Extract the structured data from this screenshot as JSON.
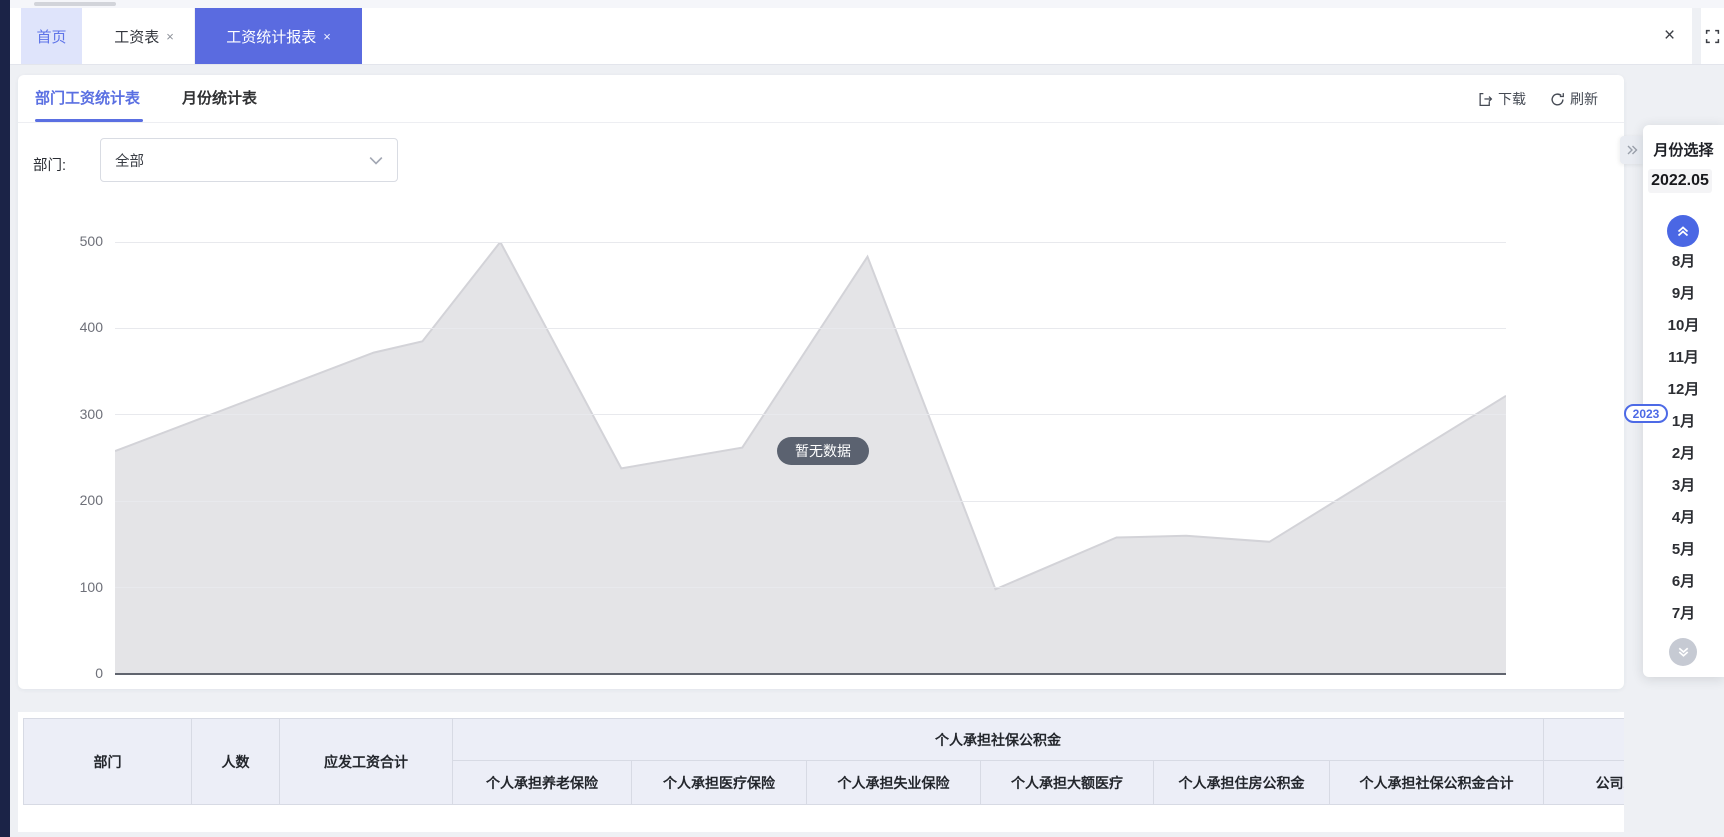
{
  "top_tabs": {
    "home": "首页",
    "payroll": "工资表",
    "report": "工资统计报表",
    "close_glyph": "×"
  },
  "window_controls": {
    "close_glyph": "×"
  },
  "view_tabs": {
    "department": "部门工资统计表",
    "month": "月份统计表"
  },
  "toolbar": {
    "download": "下载",
    "refresh": "刷新"
  },
  "filter": {
    "label": "部门:",
    "value": "全部"
  },
  "chart_data": {
    "type": "area",
    "title": "",
    "xlabel": "",
    "ylabel": "",
    "ylim": [
      0,
      500
    ],
    "yticks": [
      0,
      100,
      200,
      300,
      400,
      500
    ],
    "x_tick_labels_visible": false,
    "grid": true,
    "legend": "none",
    "no_data_label": "暂无数据",
    "series": [
      {
        "name": "gray-placeholder-area",
        "point_format": "[x_fraction_of_plot_width, y_value]",
        "points": [
          [
            0,
            258
          ],
          [
            0.186,
            372
          ],
          [
            0.221,
            385
          ],
          [
            0.277,
            500
          ],
          [
            0.364,
            238
          ],
          [
            0.451,
            262
          ],
          [
            0.541,
            483
          ],
          [
            0.633,
            98
          ],
          [
            0.72,
            158
          ],
          [
            0.77,
            160
          ],
          [
            0.83,
            153
          ],
          [
            1,
            322
          ]
        ]
      }
    ],
    "area_fill": "#e4e4e7",
    "area_stroke": "#d3d3d8"
  },
  "month_panel": {
    "title": "月份选择",
    "selected": "2022.05",
    "year_badge": "2023",
    "months": [
      "8月",
      "9月",
      "10月",
      "11月",
      "12月",
      "1月",
      "2月",
      "3月",
      "4月",
      "5月",
      "6月",
      "7月"
    ]
  },
  "table": {
    "columns_simple": [
      "部门",
      "人数",
      "应发工资合计"
    ],
    "group_personal": {
      "label": "个人承担社保公积金",
      "children": [
        "个人承担养老保险",
        "个人承担医疗保险",
        "个人承担失业保险",
        "个人承担大额医疗",
        "个人承担住房公积金",
        "个人承担社保公积金合计"
      ]
    },
    "group_company": {
      "label": "",
      "children": [
        "公司承担"
      ]
    }
  },
  "colors": {
    "accent_tab": "#5a6be0",
    "accent_text": "#5a6fe2",
    "badge_blue": "#4d6ae6",
    "tooltip_bg": "#5b6270",
    "area_fill": "#e4e4e7",
    "table_header_bg": "#eceef7",
    "rail_navy": "#1b2347"
  }
}
